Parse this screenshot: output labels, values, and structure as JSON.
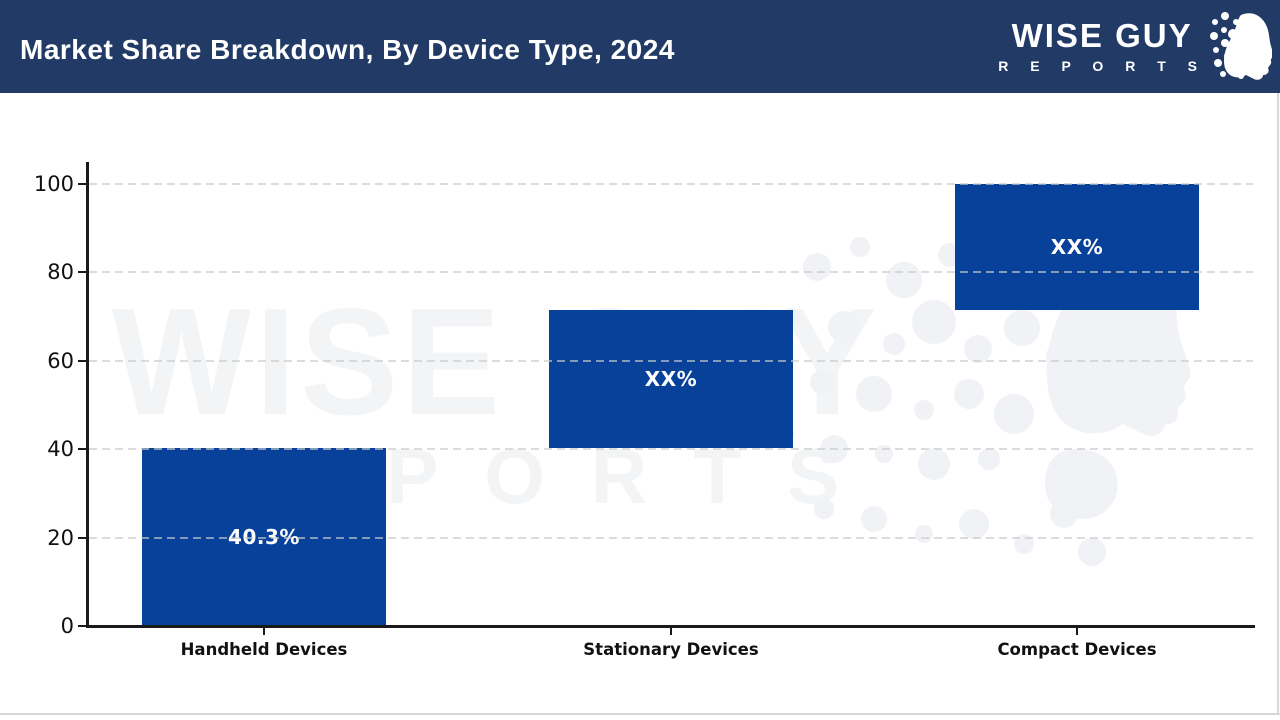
{
  "header": {
    "title": "Market Share Breakdown, By Device Type, 2024",
    "brand": {
      "line1": "WISE GUY",
      "line2": "R E P O R T S"
    },
    "bg_color": "#213a66"
  },
  "watermark": {
    "line1": "WISE GUY",
    "line2": "REPORTS"
  },
  "chart_data": {
    "type": "bar",
    "subtype": "waterfall",
    "title": "Market Share Breakdown, By Device Type, 2024",
    "categories": [
      "Handheld Devices",
      "Stationary Devices",
      "Compact Devices"
    ],
    "series": [
      {
        "name": "Handheld Devices",
        "start": 0,
        "end": 40.3,
        "label": "40.3%",
        "estimated": false
      },
      {
        "name": "Stationary Devices",
        "start": 40.3,
        "end": 71.4,
        "label": "XX%",
        "estimated": true
      },
      {
        "name": "Compact Devices",
        "start": 71.4,
        "end": 100,
        "label": "XX%",
        "estimated": true
      }
    ],
    "y_ticks": [
      0,
      20,
      40,
      60,
      80,
      100
    ],
    "ylim": [
      0,
      105
    ],
    "xlabel": "",
    "ylabel": "",
    "grid": "dashed-horizontal",
    "legend": "none",
    "bar_color": "#08419a",
    "label_color": "#ffffff"
  }
}
